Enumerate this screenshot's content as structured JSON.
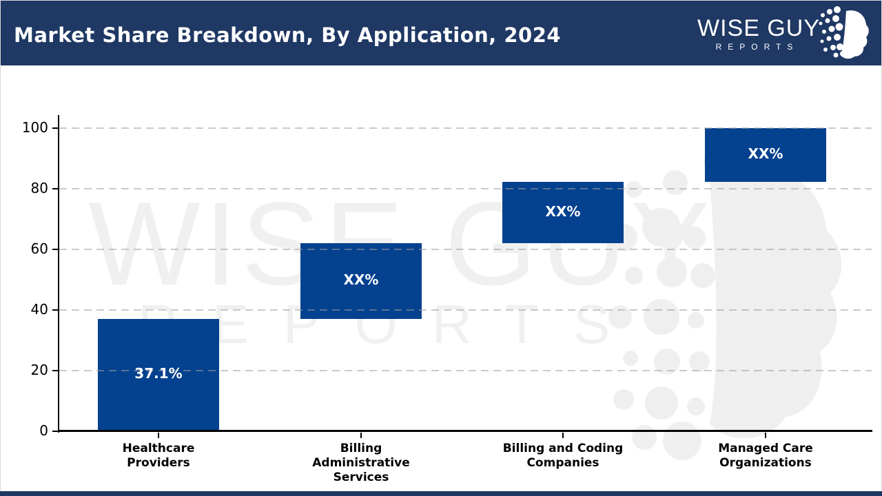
{
  "header": {
    "title": "Market Share Breakdown, By Application, 2024",
    "logo": {
      "wordmark": "WISE GUY",
      "subtext": "REPORTS"
    }
  },
  "watermark": {
    "wordmark": "WISE GUY",
    "subtext": "REPORTS"
  },
  "chart_data": {
    "type": "bar",
    "subtype": "waterfall",
    "title": "Market Share Breakdown, By Application, 2024",
    "categories": [
      [
        "Healthcare",
        "Providers"
      ],
      [
        "Billing",
        "Administrative",
        "Services"
      ],
      [
        "Billing and Coding",
        "Companies"
      ],
      [
        "Managed Care",
        "Organizations"
      ]
    ],
    "segments": [
      {
        "category": "Healthcare Providers",
        "start": 0,
        "end": 37.1,
        "label": "37.1%"
      },
      {
        "category": "Billing Administrative Services",
        "start": 37.1,
        "end": 62,
        "label": "XX%"
      },
      {
        "category": "Billing and Coding Companies",
        "start": 62,
        "end": 82.3,
        "label": "XX%"
      },
      {
        "category": "Managed Care Organizations",
        "start": 82.3,
        "end": 100,
        "label": "XX%"
      }
    ],
    "y_ticks": [
      0,
      20,
      40,
      60,
      80,
      100
    ],
    "ylim": [
      0,
      105
    ],
    "xlabel": "",
    "ylabel": "",
    "grid": "dashed-horizontal",
    "legend": "none",
    "bar_color": "#04418f",
    "bar_label_color": "#ffffff"
  },
  "colors": {
    "header_bg": "#1f3864",
    "footer_bg": "#1f3864",
    "bar": "#04418f",
    "axis": "#000000",
    "grid": "#c9c9c9",
    "watermark": "#f0f0f0",
    "title_text": "#ffffff"
  }
}
